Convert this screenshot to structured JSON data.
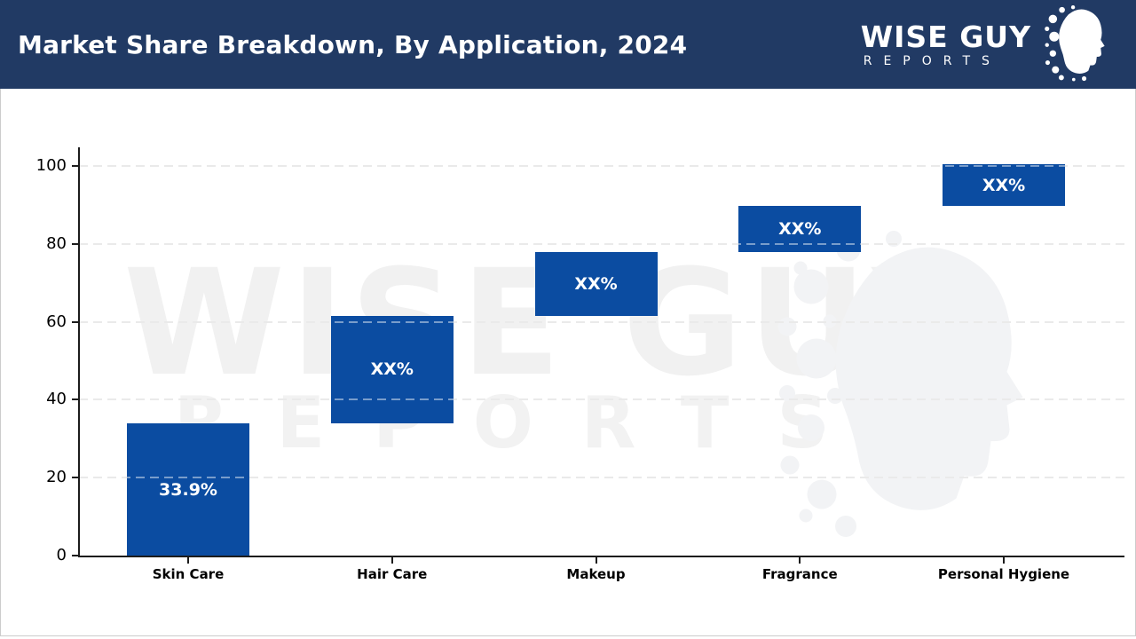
{
  "header": {
    "title": "Market Share Breakdown, By Application, 2024",
    "logo": {
      "wordmark": "WISE GUY",
      "subtitle": "REPORTS"
    }
  },
  "watermark": {
    "wordmark": "WISE GUY",
    "subtitle": "REPORTS"
  },
  "chart_data": {
    "type": "bar",
    "variant": "waterfall",
    "title": "Market Share Breakdown, By Application, 2024",
    "xlabel": "",
    "ylabel": "",
    "ylim": [
      0,
      104
    ],
    "yticks": [
      0,
      20,
      40,
      60,
      80,
      100
    ],
    "grid": "horizontal-dashed",
    "legend": "none",
    "bar_color": "#0b4ca1",
    "value_label_color": "#ffffff",
    "categories": [
      "Skin Care",
      "Hair Care",
      "Makeup",
      "Fragrance",
      "Personal Hygiene"
    ],
    "bars": [
      {
        "category": "Skin Care",
        "start": 0,
        "end": 33.9,
        "label": "33.9%"
      },
      {
        "category": "Hair Care",
        "start": 33.9,
        "end": 61.6,
        "label": "XX%"
      },
      {
        "category": "Makeup",
        "start": 61.6,
        "end": 77.8,
        "label": "XX%"
      },
      {
        "category": "Fragrance",
        "start": 77.8,
        "end": 89.8,
        "label": "XX%"
      },
      {
        "category": "Personal Hygiene",
        "start": 89.8,
        "end": 100.4,
        "label": "XX%"
      }
    ]
  }
}
